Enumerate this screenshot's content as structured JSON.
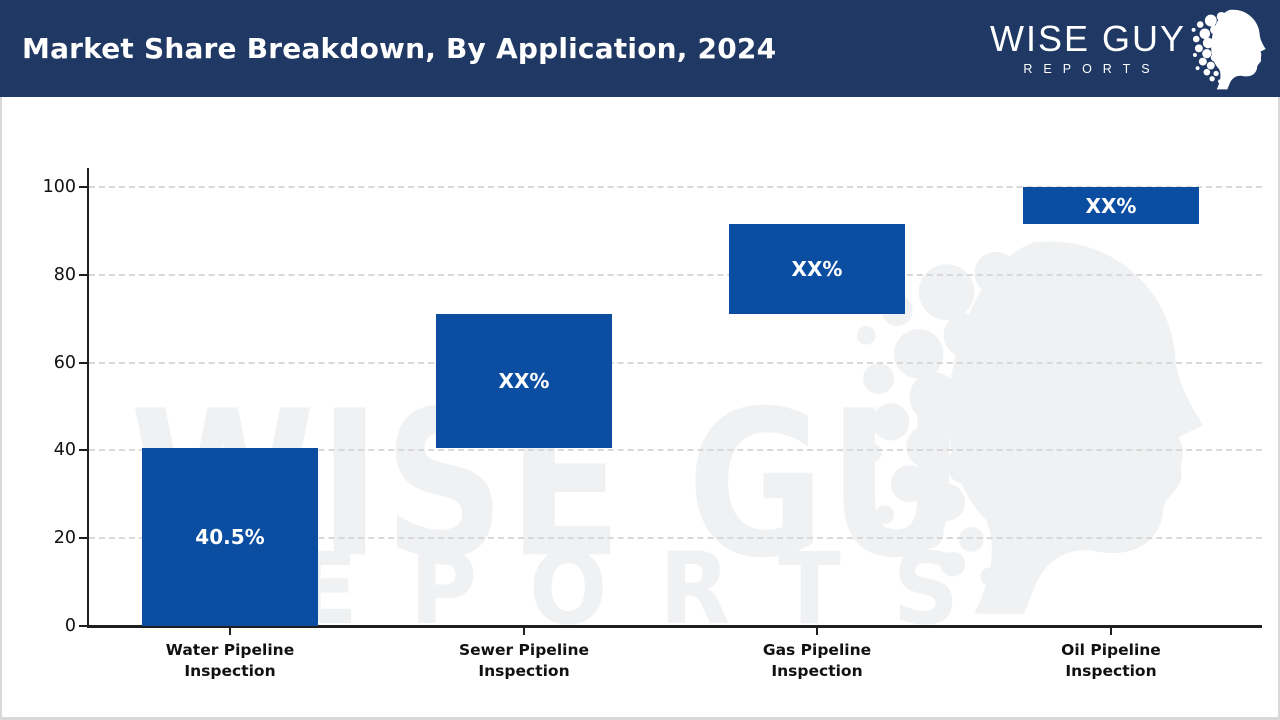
{
  "header": {
    "title": "Market Share Breakdown, By Application, 2024",
    "logo": {
      "line1": "WISE GUY",
      "line2": "REPORTS"
    }
  },
  "watermark": {
    "line1": "WISE GUY",
    "line2": "REPORTS"
  },
  "chart_data": {
    "type": "bar",
    "subtype": "floating-segment-waterfall",
    "title": "Market Share Breakdown, By Application, 2024",
    "categories": [
      "Water Pipeline Inspection",
      "Sewer Pipeline Inspection",
      "Gas Pipeline Inspection",
      "Oil Pipeline Inspection"
    ],
    "category_lines": [
      [
        "Water Pipeline",
        "Inspection"
      ],
      [
        "Sewer Pipeline",
        "Inspection"
      ],
      [
        "Gas Pipeline",
        "Inspection"
      ],
      [
        "Oil Pipeline",
        "Inspection"
      ]
    ],
    "segments": [
      {
        "category": "Water Pipeline Inspection",
        "start": 0,
        "end": 40.5,
        "label": "40.5%"
      },
      {
        "category": "Sewer Pipeline Inspection",
        "start": 40.5,
        "end": 71,
        "label": "XX%"
      },
      {
        "category": "Gas Pipeline Inspection",
        "start": 71,
        "end": 91.5,
        "label": "XX%"
      },
      {
        "category": "Oil Pipeline Inspection",
        "start": 91.5,
        "end": 100,
        "label": "XX%"
      }
    ],
    "xlabel": "",
    "ylabel": "",
    "ylim": [
      0,
      100
    ],
    "yticks": [
      0,
      20,
      40,
      60,
      80,
      100
    ],
    "grid": "horizontal-dashed",
    "legend": "none"
  },
  "colors": {
    "header_bg": "#1f3864",
    "bar": "#0b4da1",
    "bar_label": "#ffffff",
    "axis": "#1f1f1f",
    "grid": "#d9d9d9",
    "tick_label": "#111111",
    "watermark": "#f0f1f3",
    "panel_border": "#d9d9d9"
  }
}
